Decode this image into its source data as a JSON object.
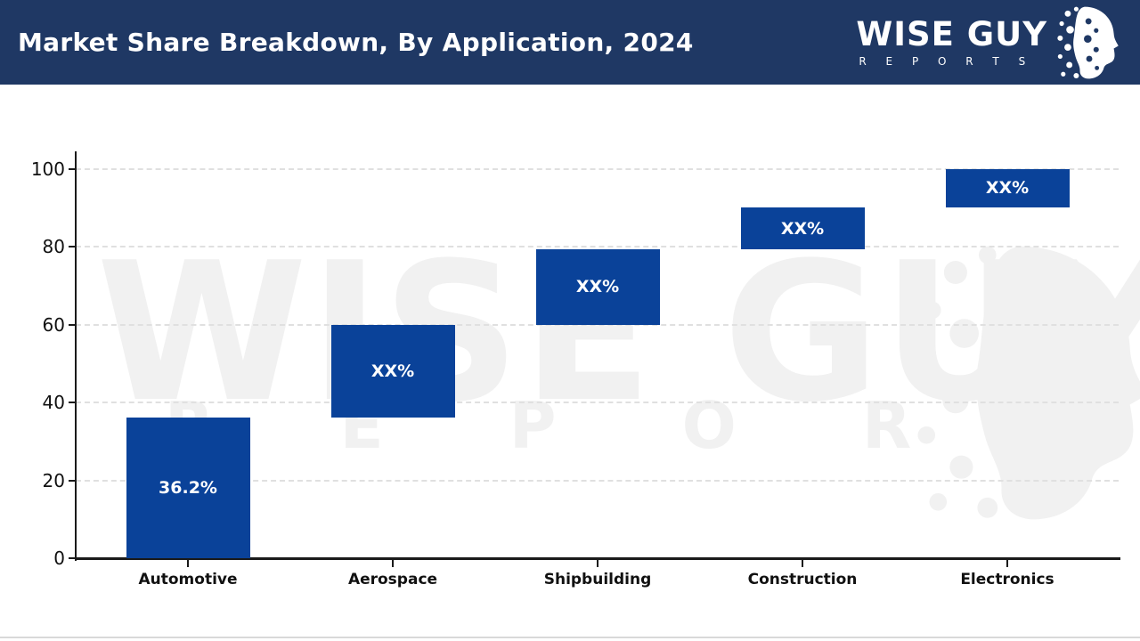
{
  "header": {
    "title": "Market Share Breakdown, By Application, 2024",
    "logo_name": "WISE GUY",
    "logo_sub": "R E P O R T S"
  },
  "watermark": {
    "line1": "WISE GUY",
    "line2": "R E P O R T S"
  },
  "colors": {
    "header_bg": "#1f3864",
    "bar": "#0a4299",
    "bar_label": "#ffffff",
    "gridline": "#e0e0e0",
    "axis": "#1a1a1a",
    "tick_label": "#111111",
    "watermark": "#f1f1f1",
    "bottom_rule": "#d9d9d9"
  },
  "chart_data": {
    "type": "bar",
    "subtype": "waterfall-floating-bars",
    "title": "Market Share Breakdown, By Application, 2024",
    "categories": [
      "Automotive",
      "Aerospace",
      "Shipbuilding",
      "Construction",
      "Electronics"
    ],
    "bars": [
      {
        "category": "Automotive",
        "start": 0,
        "end": 36.2,
        "label": "36.2%"
      },
      {
        "category": "Aerospace",
        "start": 36.2,
        "end": 60,
        "label": "XX%"
      },
      {
        "category": "Shipbuilding",
        "start": 60,
        "end": 79.3,
        "label": "XX%"
      },
      {
        "category": "Construction",
        "start": 79.3,
        "end": 90,
        "label": "XX%"
      },
      {
        "category": "Electronics",
        "start": 90,
        "end": 100,
        "label": "XX%"
      }
    ],
    "xlabel": "",
    "ylabel": "",
    "yticks": [
      0,
      20,
      40,
      60,
      80,
      100
    ],
    "ylim": [
      0,
      105
    ],
    "grid": "horizontal-dashed",
    "legend": "none"
  }
}
